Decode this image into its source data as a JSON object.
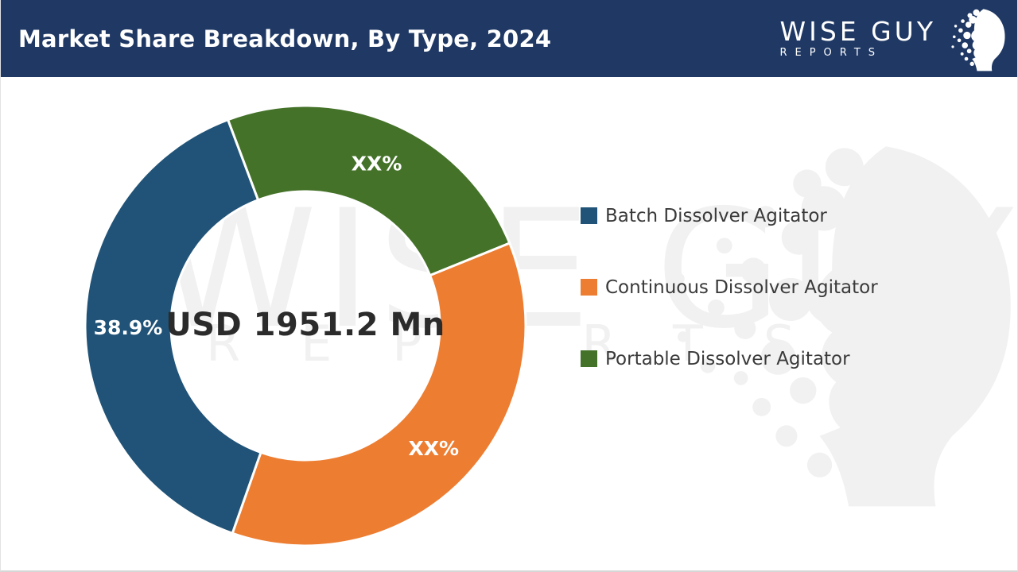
{
  "header": {
    "title": "Market Share Breakdown, By Type, 2024",
    "bg_color": "#1F3864",
    "logo": {
      "line1": "WISE GUY",
      "line2": "REPORTS"
    }
  },
  "watermark": {
    "line1": "WISE GUY",
    "line2": "REPORTS"
  },
  "legend": {
    "items": [
      {
        "label": "Batch Dissolver Agitator",
        "color": "#205377"
      },
      {
        "label": "Continuous Dissolver Agitator",
        "color": "#ED7D31"
      },
      {
        "label": "Portable Dissolver Agitator",
        "color": "#447228"
      }
    ]
  },
  "chart_data": {
    "type": "pie",
    "donut": true,
    "title": "Market Share Breakdown, By Type, 2024",
    "center_label": "USD 1951.2 Mn",
    "start_angle_deg": 110.6,
    "direction": "clockwise",
    "inner_radius_ratio": 0.61,
    "legend_position": "right",
    "slices": [
      {
        "name": "Portable Dissolver Agitator",
        "value_pct": 24.6,
        "label": "XX%",
        "color": "#447228"
      },
      {
        "name": "Continuous Dissolver Agitator",
        "value_pct": 36.5,
        "label": "XX%",
        "color": "#ED7D31"
      },
      {
        "name": "Batch Dissolver Agitator",
        "value_pct": 38.9,
        "label": "38.9%",
        "color": "#205377"
      }
    ]
  }
}
